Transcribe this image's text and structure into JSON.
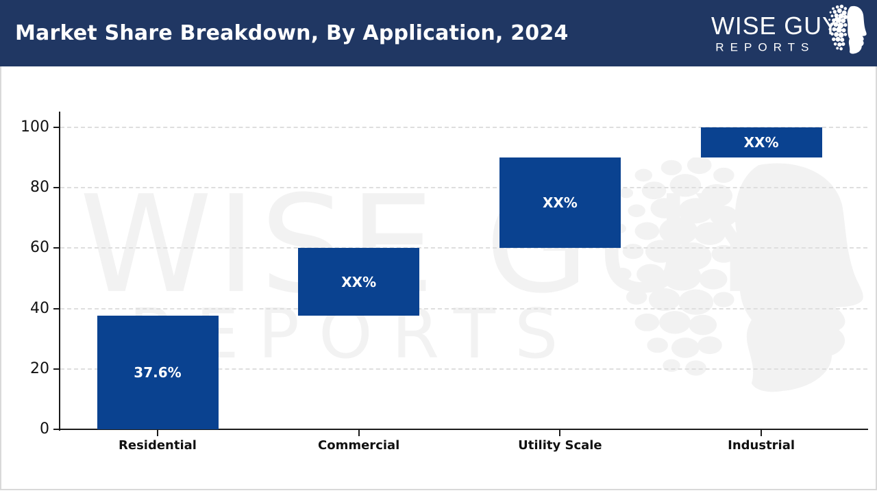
{
  "header": {
    "title": "Market Share Breakdown, By Application, 2024",
    "logo": {
      "wordmark": "WISE GUY",
      "sub": "REPORTS"
    }
  },
  "watermark": {
    "wordmark": "WISE GUY",
    "sub": "REPORTS"
  },
  "chart_data": {
    "type": "bar",
    "subtype": "waterfall",
    "title": "Market Share Breakdown, By Application, 2024",
    "categories": [
      "Residential",
      "Commercial",
      "Utility Scale",
      "Industrial"
    ],
    "segments": [
      {
        "category": "Residential",
        "start": 0,
        "end": 37.6,
        "label": "37.6%"
      },
      {
        "category": "Commercial",
        "start": 37.6,
        "end": 60,
        "label": "XX%"
      },
      {
        "category": "Utility Scale",
        "start": 60,
        "end": 90,
        "label": "XX%"
      },
      {
        "category": "Industrial",
        "start": 90,
        "end": 100,
        "label": "XX%"
      }
    ],
    "yticks": [
      0,
      20,
      40,
      60,
      80,
      100
    ],
    "ylim": [
      0,
      105
    ],
    "xlabel": "",
    "ylabel": "",
    "grid": "horizontal-dashed",
    "legend": "none",
    "bar_color": "#0A4290",
    "value_label_color": "#FFFFFF"
  },
  "colors": {
    "header_bg": "#203763",
    "header_text": "#FFFFFF",
    "bar": "#0A4290",
    "gridline": "#DEDEDE",
    "axis": "#1A1A1A",
    "tick_label": "#111111",
    "watermark": "#F2F2F2",
    "frame_border": "#D9D9D9",
    "background": "#FFFFFF"
  }
}
